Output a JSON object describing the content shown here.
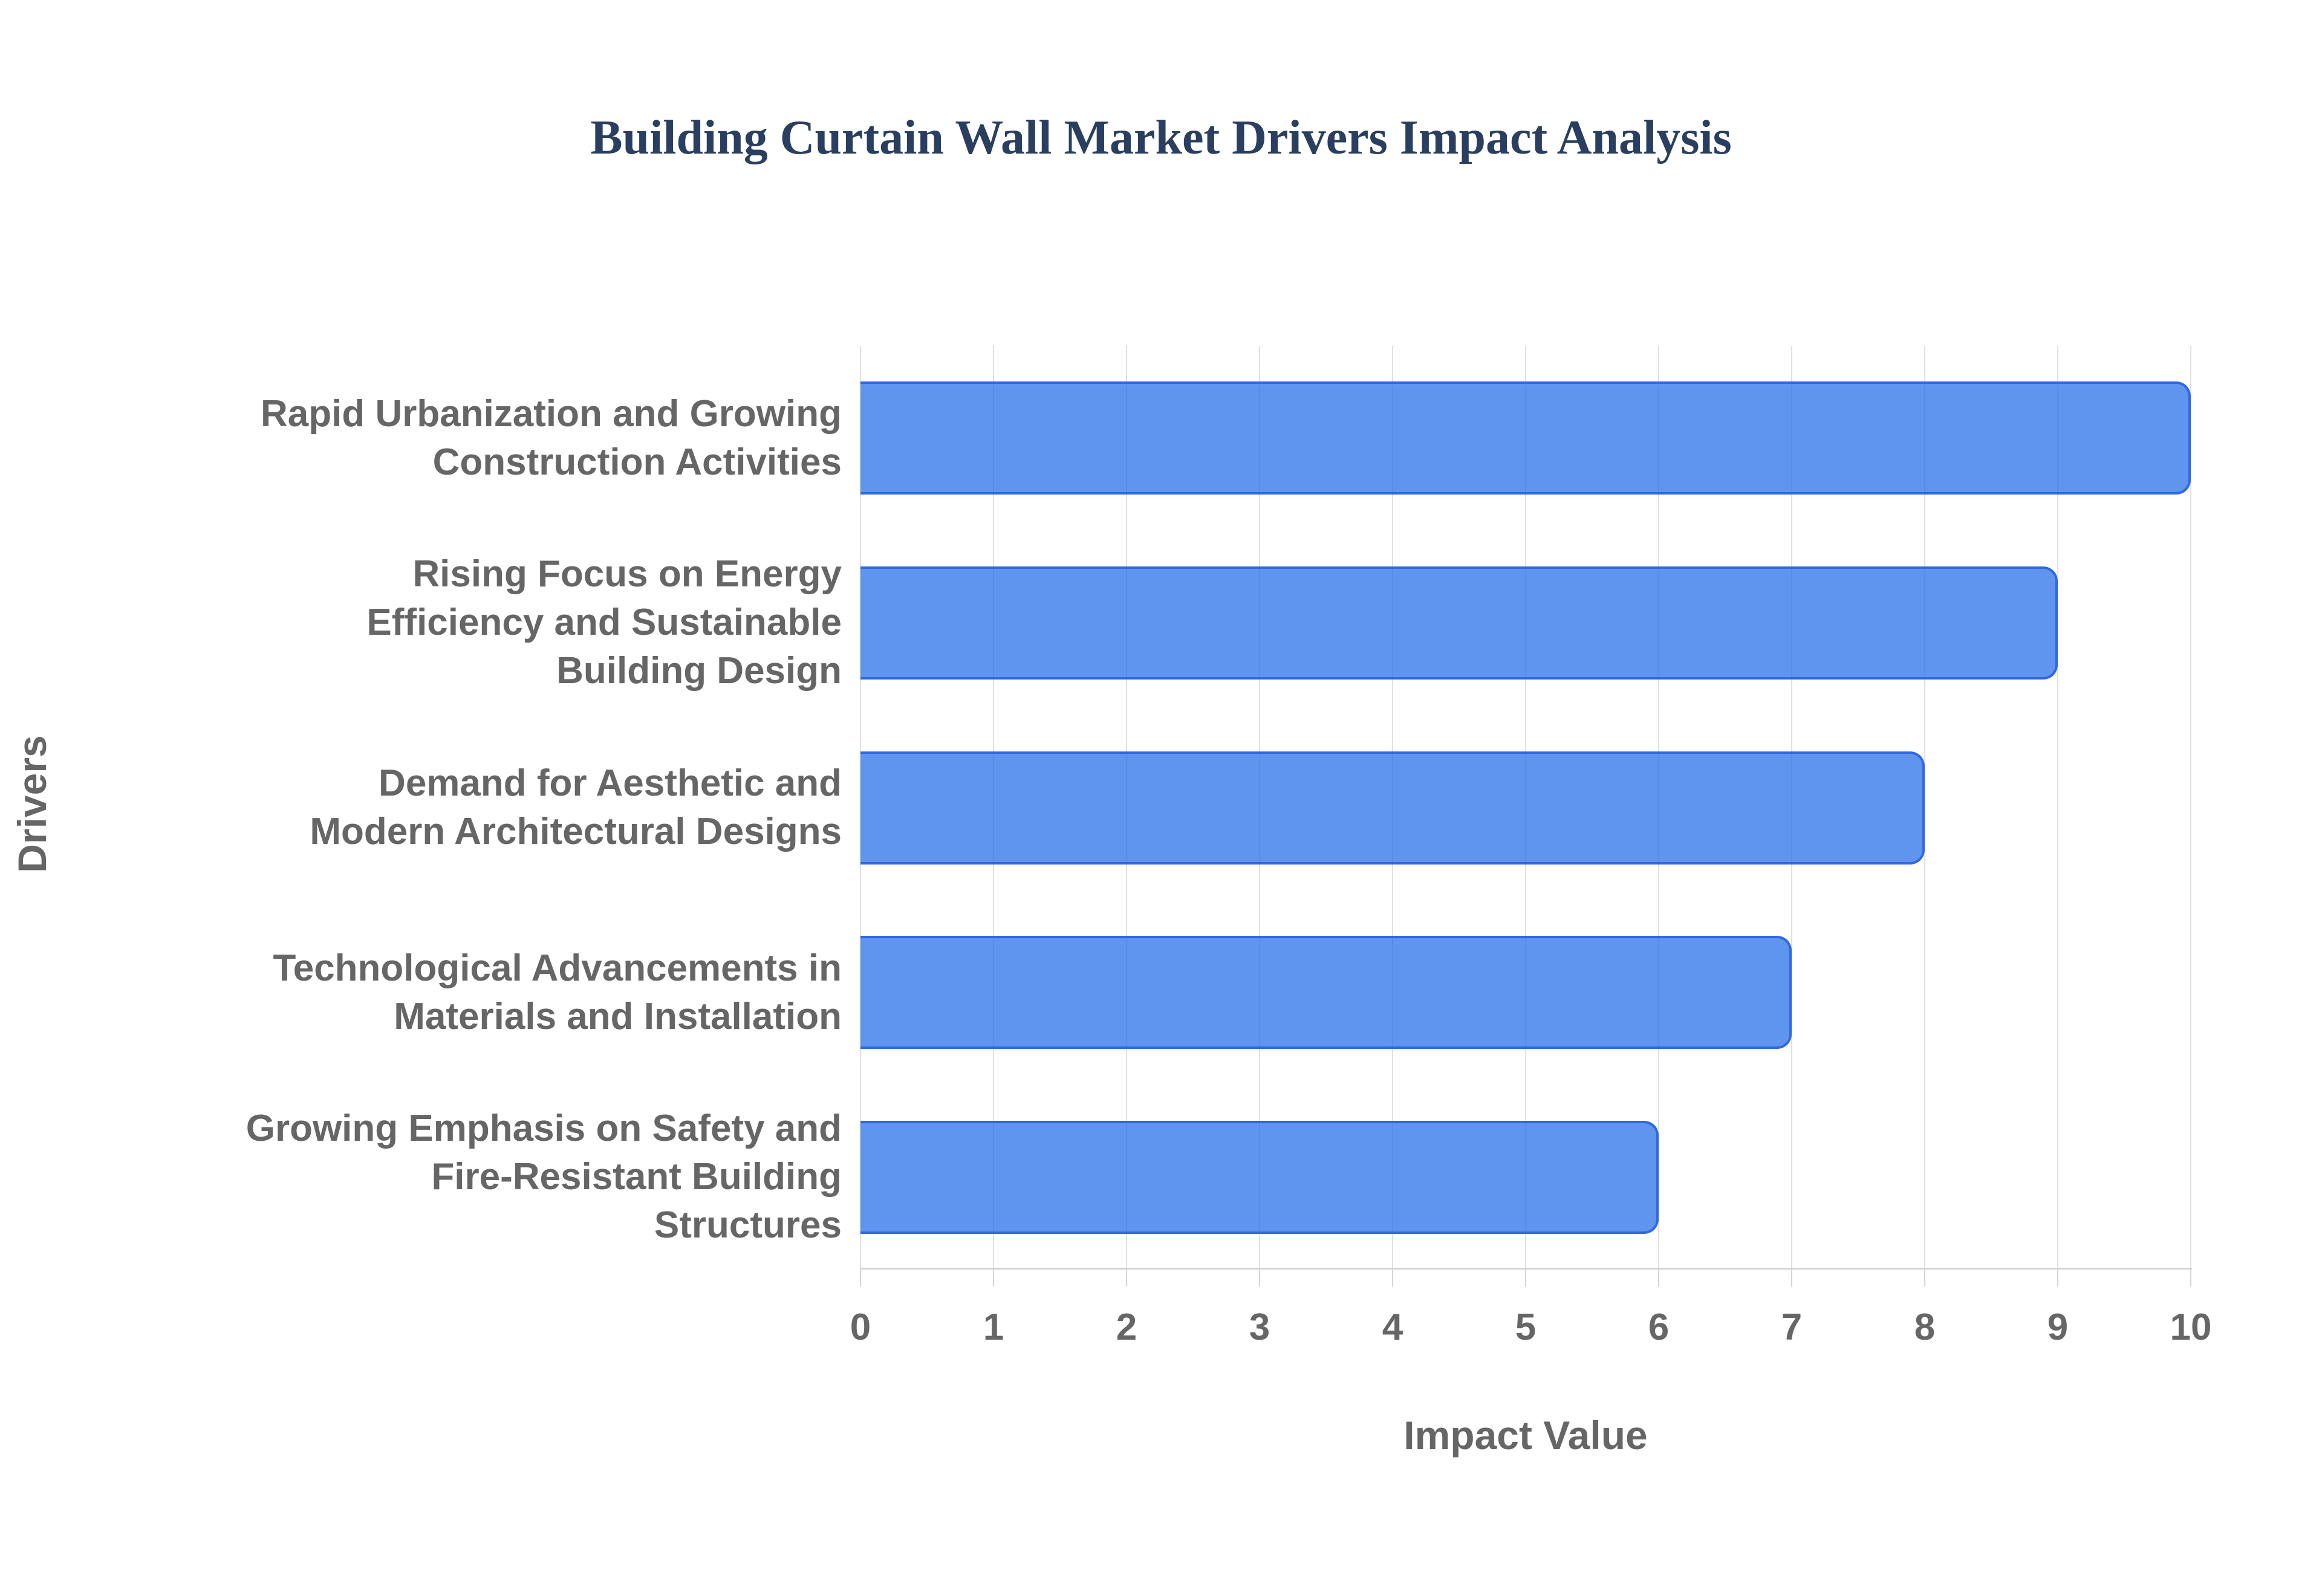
{
  "chart_data": {
    "type": "bar",
    "orientation": "horizontal",
    "title": "Building Curtain Wall Market Drivers Impact Analysis",
    "xlabel": "Impact Value",
    "ylabel": "Drivers",
    "categories": [
      "Rapid Urbanization and Growing Construction Activities",
      "Rising Focus on Energy Efficiency and Sustainable Building Design",
      "Demand for Aesthetic and Modern Architectural Designs",
      "Technological Advancements in Materials and Installation",
      "Growing Emphasis on Safety and Fire-Resistant Building Structures"
    ],
    "values": [
      10,
      9,
      8,
      7,
      6
    ],
    "xlim": [
      0,
      10
    ],
    "xticks": [
      "0",
      "1",
      "2",
      "3",
      "4",
      "5",
      "6",
      "7",
      "8",
      "9",
      "10"
    ],
    "grid": true,
    "legend": "none",
    "colors": {
      "bar_fill": "rgba(33,108,233,0.72)",
      "bar_border": "#3068e0",
      "title_text": "#2a3f5f",
      "axis_text": "#666666",
      "gridline": "#e0e0e0",
      "axis_line": "#d4d4d4",
      "background": "#ffffff"
    }
  }
}
